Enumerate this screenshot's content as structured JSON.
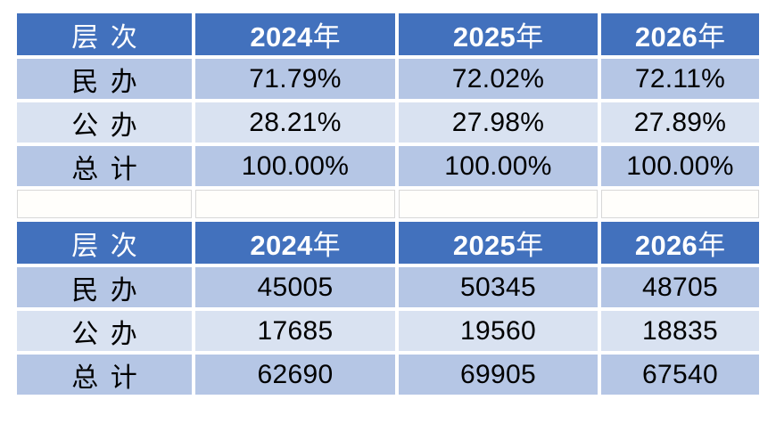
{
  "colors": {
    "header_bg": "#4271bd",
    "header_text": "#ffffff",
    "band_medium": "#b5c6e5",
    "band_light": "#d9e2f1",
    "text": "#000000",
    "spacer_bg": "#fffefb",
    "spacer_border": "#d8d8d8"
  },
  "tables": [
    {
      "name": "enrollment-share-table",
      "header": {
        "first": "层次",
        "years": [
          {
            "num": "2024",
            "suffix": "年"
          },
          {
            "num": "2025",
            "suffix": "年"
          },
          {
            "num": "2026",
            "suffix": "年"
          }
        ]
      },
      "rows": [
        {
          "label": "民办",
          "values": [
            "71.79%",
            "72.02%",
            "72.11%"
          ]
        },
        {
          "label": "公办",
          "values": [
            "28.21%",
            "27.98%",
            "27.89%"
          ]
        },
        {
          "label": "总计",
          "values": [
            "100.00%",
            "100.00%",
            "100.00%"
          ]
        }
      ]
    },
    {
      "name": "enrollment-count-table",
      "header": {
        "first": "层次",
        "years": [
          {
            "num": "2024",
            "suffix": "年"
          },
          {
            "num": "2025",
            "suffix": "年"
          },
          {
            "num": "2026",
            "suffix": "年"
          }
        ]
      },
      "rows": [
        {
          "label": "民办",
          "values": [
            "45005",
            "50345",
            "48705"
          ]
        },
        {
          "label": "公办",
          "values": [
            "17685",
            "19560",
            "18835"
          ]
        },
        {
          "label": "总计",
          "values": [
            "62690",
            "69905",
            "67540"
          ]
        }
      ]
    }
  ]
}
